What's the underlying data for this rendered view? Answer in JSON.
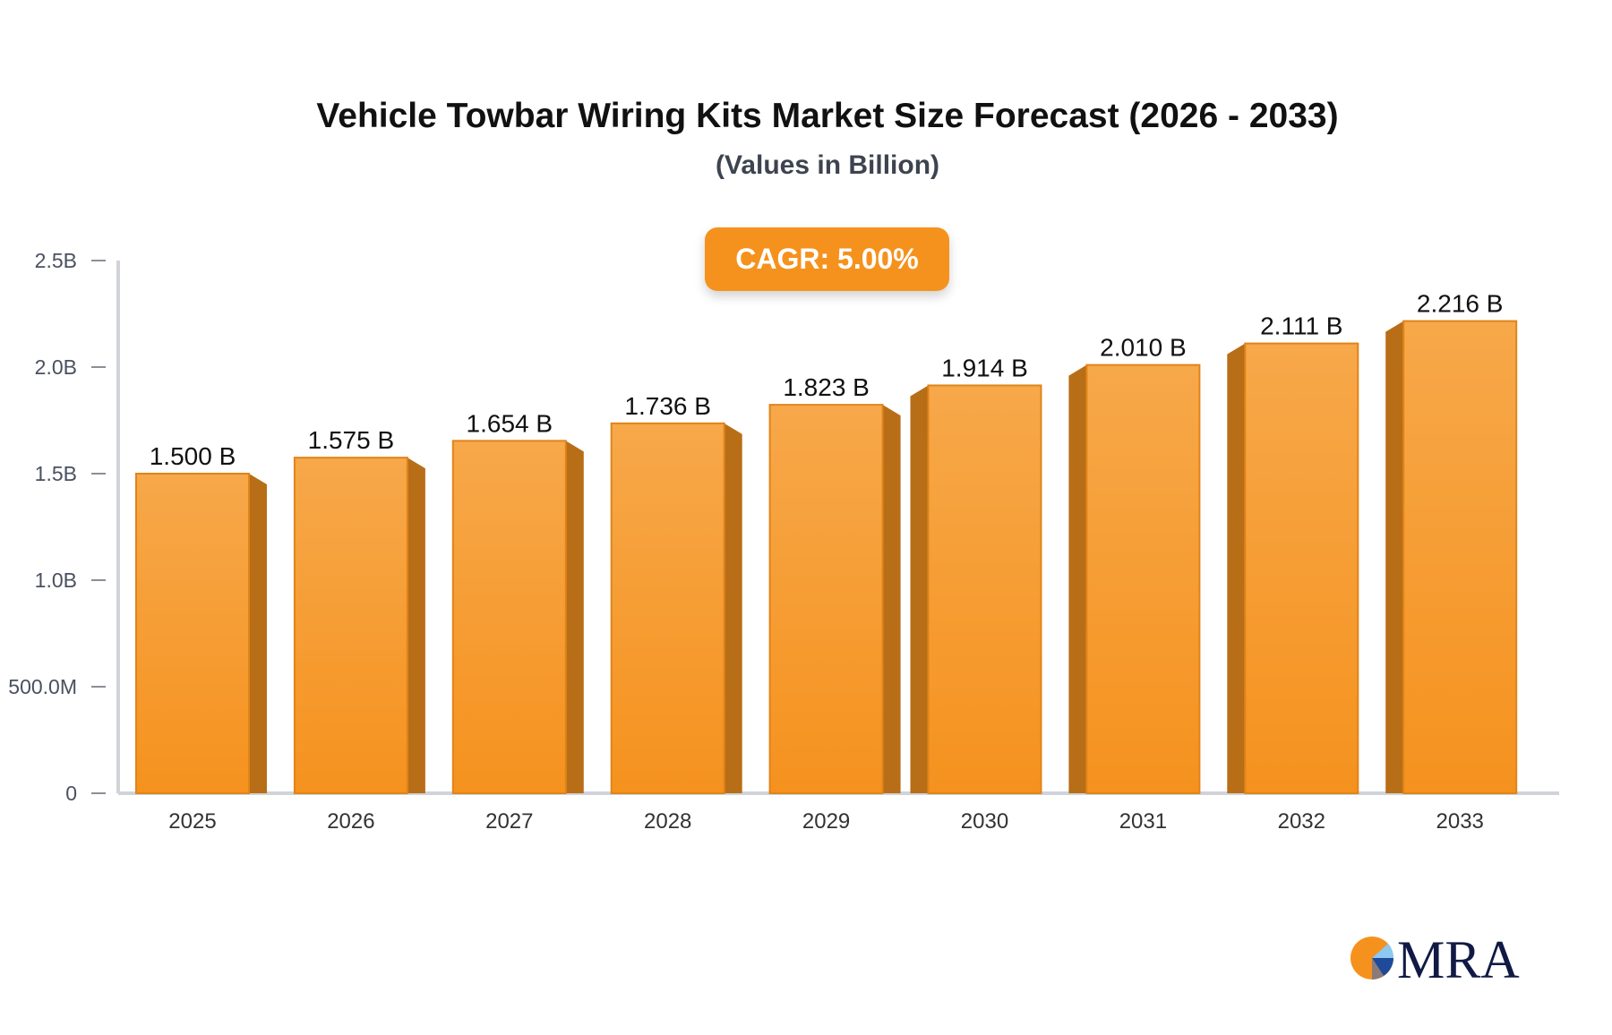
{
  "chart_data": {
    "type": "bar",
    "title": "Vehicle Towbar Wiring Kits Market Size Forecast (2026 - 2033)",
    "subtitle": "(Values in Billion)",
    "annotation": "CAGR: 5.00%",
    "categories": [
      "2025",
      "2026",
      "2027",
      "2028",
      "2029",
      "2030",
      "2031",
      "2032",
      "2033"
    ],
    "values": [
      1.5,
      1.575,
      1.654,
      1.736,
      1.823,
      1.914,
      2.01,
      2.111,
      2.216
    ],
    "data_labels": [
      "1.500 B",
      "1.575 B",
      "1.654 B",
      "1.736 B",
      "1.823 B",
      "1.914 B",
      "2.010 B",
      "2.111 B",
      "2.216 B"
    ],
    "yticks": [
      0,
      0.5,
      1.0,
      1.5,
      2.0,
      2.5
    ],
    "ytick_labels": [
      "0",
      "500.0M",
      "1.0B",
      "1.5B",
      "2.0B",
      "2.5B"
    ],
    "ylim": [
      0,
      2.5
    ],
    "xlabel": "",
    "ylabel": "",
    "grid": false,
    "colors": {
      "bar_top": "#f7a84a",
      "bar_bottom": "#f5921e",
      "bar_side": "#b86e17",
      "accent": "#f5921e"
    }
  },
  "logo": {
    "text": "MRA"
  }
}
